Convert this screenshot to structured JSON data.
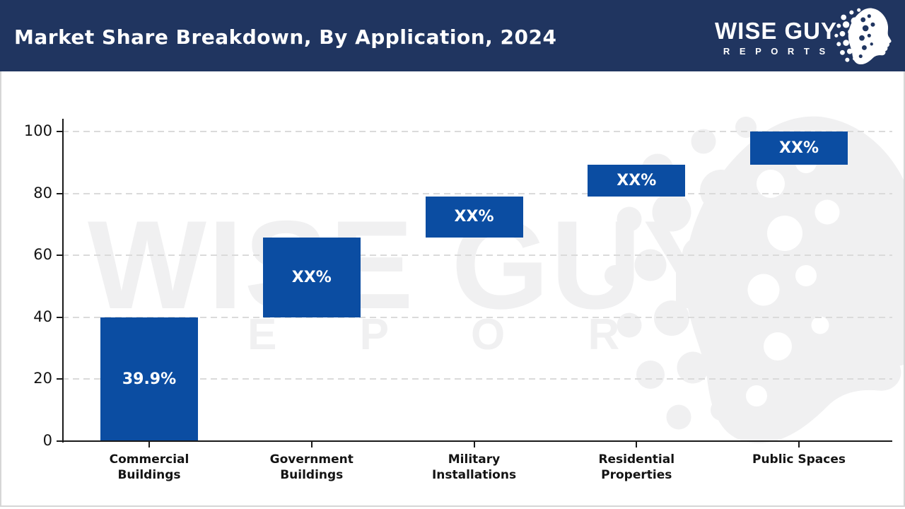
{
  "header": {
    "title": "Market Share Breakdown, By Application, 2024",
    "logo": {
      "line1": "WISE GUY",
      "line2": "R E P O R T S"
    }
  },
  "watermark": {
    "line1": "WISE GUY",
    "line2": "R E P O R T S"
  },
  "colors": {
    "header_bg": "#203560",
    "bar": "#0b4da2",
    "bar_label": "#ffffff",
    "axis": "#1a1a1a",
    "gridline": "#dadada",
    "watermark": "#f0f0f1"
  },
  "chart_data": {
    "type": "bar",
    "subtype": "waterfall",
    "title": "Market Share Breakdown, By Application, 2024",
    "xlabel": "",
    "ylabel": "",
    "categories": [
      "Commercial Buildings",
      "Government Buildings",
      "Military Installations",
      "Residential Properties",
      "Public Spaces"
    ],
    "category_lines": [
      [
        "Commercial",
        "Buildings"
      ],
      [
        "Government",
        "Buildings"
      ],
      [
        "Military",
        "Installations"
      ],
      [
        "Residential",
        "Properties"
      ],
      [
        "Public Spaces"
      ]
    ],
    "segments": [
      {
        "category": "Commercial Buildings",
        "label": "39.9%",
        "start": 0,
        "end": 39.9
      },
      {
        "category": "Government Buildings",
        "label": "XX%",
        "start": 39.9,
        "end": 65.8
      },
      {
        "category": "Military Installations",
        "label": "XX%",
        "start": 65.8,
        "end": 79.0
      },
      {
        "category": "Residential Properties",
        "label": "XX%",
        "start": 79.0,
        "end": 89.3
      },
      {
        "category": "Public Spaces",
        "label": "XX%",
        "start": 89.3,
        "end": 100
      }
    ],
    "yticks": [
      0,
      20,
      40,
      60,
      80,
      100
    ],
    "ylim": [
      0,
      105
    ],
    "grid": "horizontal-dashed",
    "legend": "none"
  }
}
